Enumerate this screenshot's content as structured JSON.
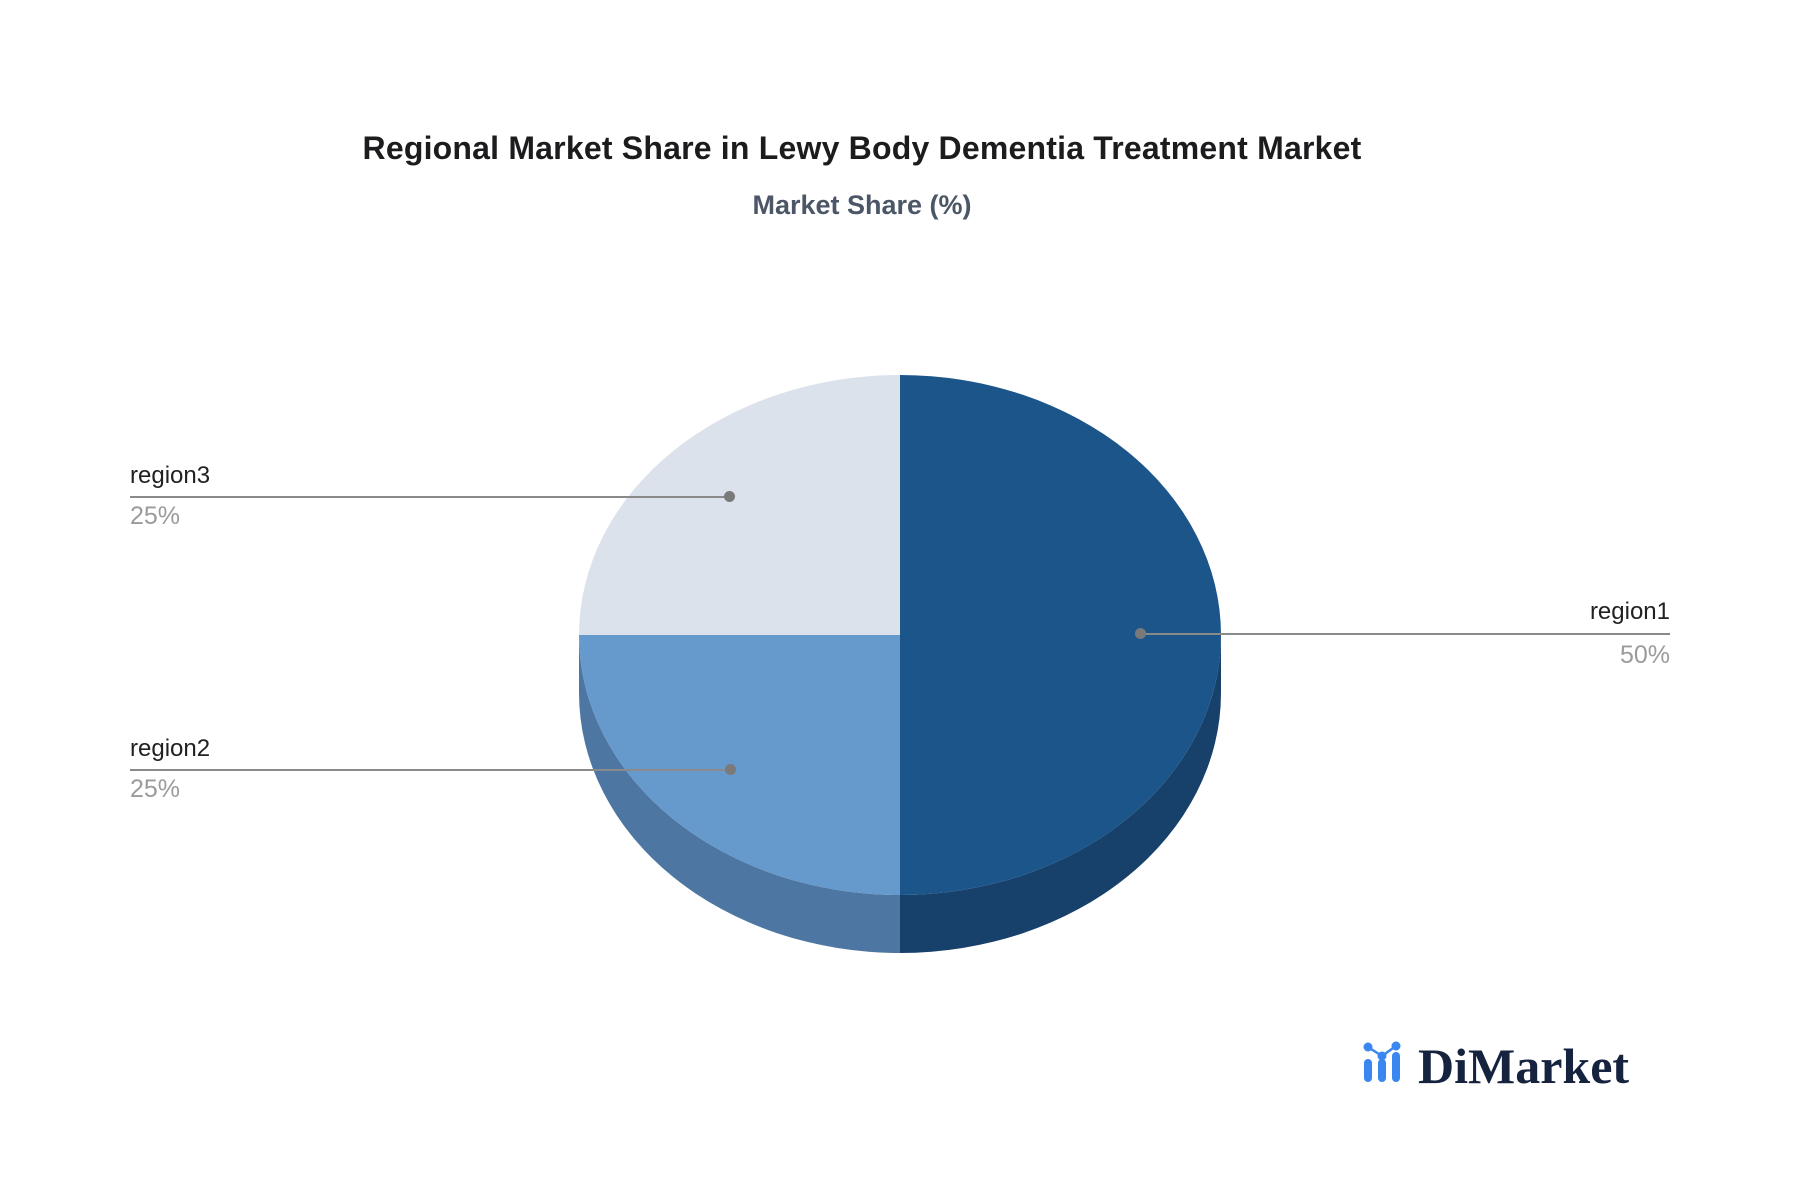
{
  "page": {
    "title": "Regional Market Share in Lewy Body Dementia Treatment Market",
    "subtitle": "Market Share (%)"
  },
  "chart_data": {
    "type": "pie",
    "style": "3d",
    "title": "Regional Market Share in Lewy Body Dementia Treatment Market",
    "subtitle": "Market Share (%)",
    "start_angle": "top",
    "direction": "clockwise",
    "legend": "none",
    "slices": [
      {
        "label": "region1",
        "value": 50,
        "value_label": "50%",
        "color": "#1b558a",
        "side_color": "#17406b",
        "label_side": "right"
      },
      {
        "label": "region2",
        "value": 25,
        "value_label": "25%",
        "color": "#6699cc",
        "side_color": "#4d77a2",
        "label_side": "left"
      },
      {
        "label": "region3",
        "value": 25,
        "value_label": "25%",
        "color": "#dbe2ec",
        "side_color": "#aeb9c9",
        "label_side": "left"
      }
    ],
    "label_line_color": "#8a8a8a",
    "label_dot_color": "#7a7a7a",
    "label_text_color": "#212121",
    "value_text_color": "#9b9b9b"
  },
  "logo": {
    "text": "DiMarket",
    "icon": "bar-line-chart-icon",
    "icon_color": "#3b87f0",
    "text_color": "#16233e"
  }
}
